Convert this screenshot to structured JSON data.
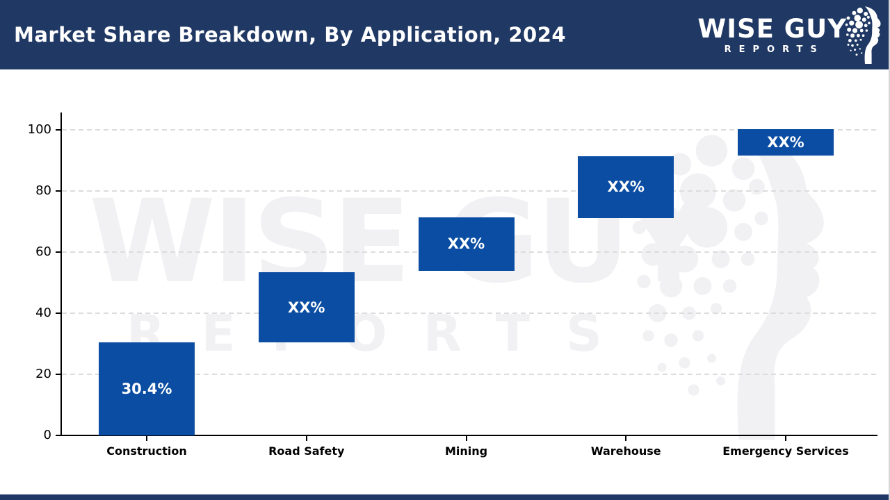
{
  "header": {
    "title": "Market Share Breakdown, By Application, 2024",
    "logo": {
      "line1": "WISE GUY",
      "line2": "REPORTS"
    }
  },
  "watermark": {
    "line1": "WISE GUY",
    "line2": "REPORTS"
  },
  "colors": {
    "header_bg": "#203864",
    "footer_bg": "#203864",
    "bar": "#0b4da2",
    "bar_label": "#ffffff",
    "grid": "#dcdcdc",
    "axis": "#000000",
    "tick_label": "#000000",
    "watermark": "#f1f1f4"
  },
  "chart_data": {
    "type": "bar",
    "subtype": "waterfall",
    "title": "Market Share Breakdown, By Application, 2024",
    "categories": [
      "Construction",
      "Road Safety",
      "Mining",
      "Warehouse",
      "Emergency Services"
    ],
    "segments": [
      {
        "category": "Construction",
        "start": 0,
        "end": 30.4,
        "label": "30.4%"
      },
      {
        "category": "Road Safety",
        "start": 30.4,
        "end": 53.4,
        "label": "XX%"
      },
      {
        "category": "Mining",
        "start": 53.9,
        "end": 71.4,
        "label": "XX%"
      },
      {
        "category": "Warehouse",
        "start": 71.1,
        "end": 91.4,
        "label": "XX%"
      },
      {
        "category": "Emergency Services",
        "start": 91.6,
        "end": 100.2,
        "label": "XX%"
      }
    ],
    "yticks": [
      0,
      20,
      40,
      60,
      80,
      100
    ],
    "ylim": [
      0,
      105
    ],
    "xlabel": "",
    "ylabel": "",
    "grid": "horizontal-dashed",
    "legend": "none"
  }
}
